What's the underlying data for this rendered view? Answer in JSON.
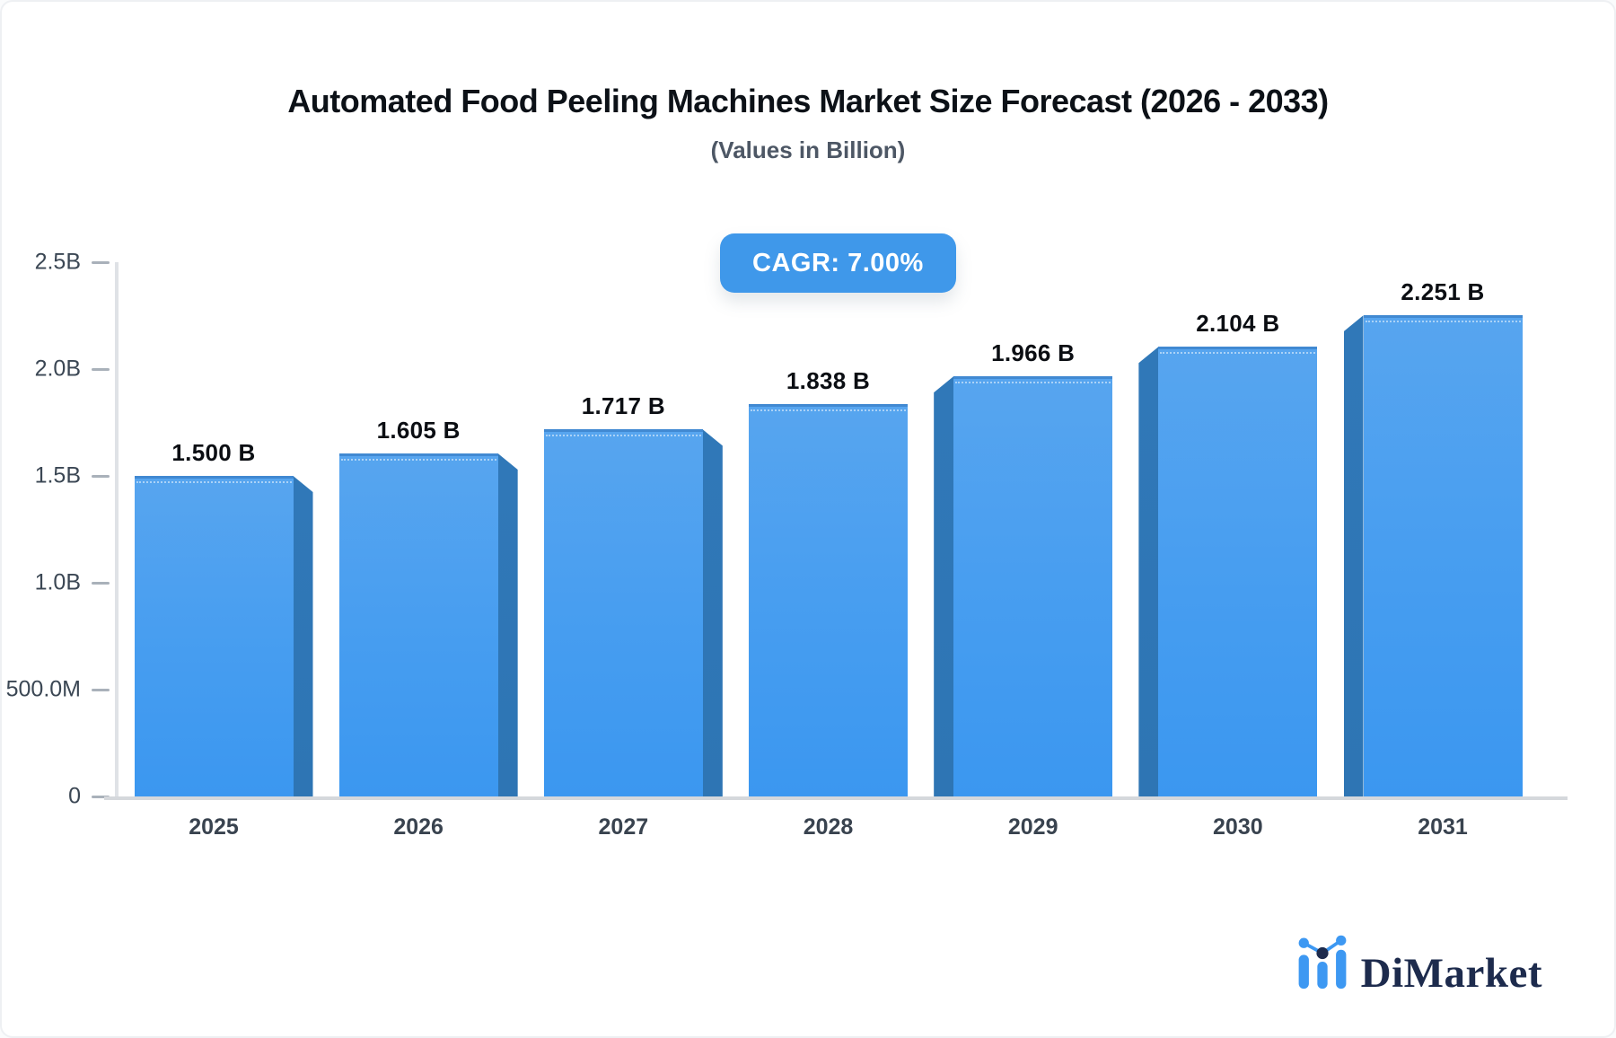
{
  "title": "Automated Food Peeling Machines Market Size Forecast (2026 - 2033)",
  "subtitle": "(Values in Billion)",
  "cagr_badge": "CAGR: 7.00%",
  "brand": {
    "name": "DiMarket"
  },
  "colors": {
    "badge_bg": "#3f98ea",
    "bar_face_top": "#57a5ef",
    "bar_face_bottom": "#3b97f0",
    "bar_side": "#2e75b4",
    "brand_navy": "#1d2b4d",
    "brand_blue": "#3d98f2"
  },
  "chart_data": {
    "type": "bar",
    "title": "Automated Food Peeling Machines Market Size Forecast (2026 - 2033)",
    "subtitle": "(Values in Billion)",
    "unit": "Billion",
    "categories": [
      "2025",
      "2026",
      "2027",
      "2028",
      "2029",
      "2030",
      "2031"
    ],
    "values": [
      1.5,
      1.605,
      1.717,
      1.838,
      1.966,
      2.104,
      2.251
    ],
    "value_labels": [
      "1.500 B",
      "1.605 B",
      "1.717 B",
      "1.838 B",
      "1.966 B",
      "2.104 B",
      "2.251 B"
    ],
    "ylim": [
      0,
      2.5
    ],
    "ytick_values": [
      2.5,
      2.0,
      1.5,
      1.0,
      0.5,
      0
    ],
    "ytick_labels": [
      "2.5B",
      "2.0B",
      "1.5B",
      "1.0B",
      "500.0M",
      "0"
    ],
    "xlabel": "",
    "ylabel": "",
    "grid": false,
    "legend": false,
    "annotations": [
      "CAGR: 7.00%"
    ]
  }
}
